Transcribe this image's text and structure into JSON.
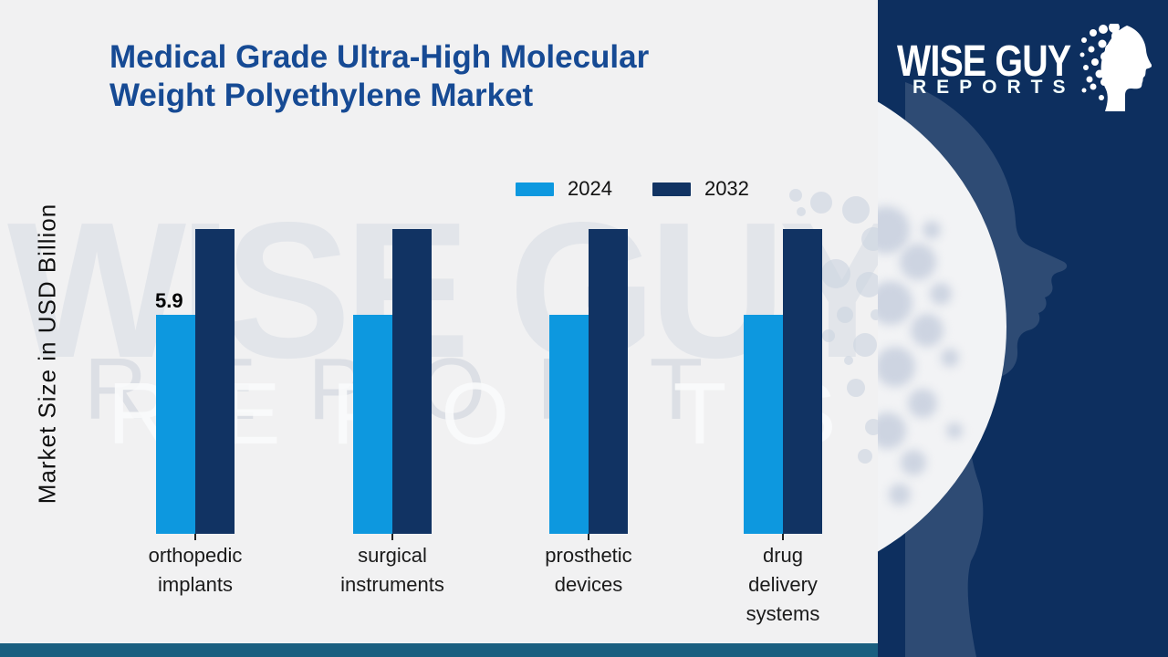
{
  "title": {
    "line1": "Medical Grade Ultra-High Molecular",
    "line2": "Weight Polyethylene Market"
  },
  "y_axis_label": "Market Size in USD Billion",
  "brand": {
    "name": "WISE GUY",
    "tagline": "REPORTS"
  },
  "watermark": {
    "line1": "WISE GUY",
    "line2": "REPORTS"
  },
  "colors": {
    "background": "#f1f1f2",
    "title": "#164a94",
    "bar_2024": "#0d98df",
    "bar_2032": "#113363",
    "brand_panel": "#0d2f5f",
    "bottom_bar": "#1a5f80",
    "watermark_gray": "#dcdfe5"
  },
  "chart_data": {
    "type": "bar",
    "title": "Medical Grade Ultra-High Molecular Weight Polyethylene Market",
    "categories": [
      "orthopedic implants",
      "surgical instruments",
      "prosthetic devices",
      "drug delivery systems"
    ],
    "category_label_lines": [
      [
        "orthopedic",
        "implants"
      ],
      [
        "surgical",
        "instruments"
      ],
      [
        "prosthetic",
        "devices"
      ],
      [
        "drug",
        "delivery",
        "systems"
      ]
    ],
    "series": [
      {
        "name": "2024",
        "color": "#0d98df",
        "values": [
          5.9,
          5.9,
          5.9,
          5.9
        ]
      },
      {
        "name": "2032",
        "color": "#113363",
        "values": [
          8.2,
          8.2,
          8.2,
          8.2
        ]
      }
    ],
    "value_labels": [
      {
        "series_index": 0,
        "category_index": 0,
        "text": "5.9"
      }
    ],
    "xlabel": "",
    "ylabel": "Market Size in USD Billion",
    "ylim": [
      0,
      9.5
    ],
    "grid": false,
    "legend": [
      "2024",
      "2032"
    ],
    "legend_position": "top-center",
    "note_values_estimated": "only the 5.9 label is printed on the chart; 2032 bar heights imply ~8.2"
  }
}
